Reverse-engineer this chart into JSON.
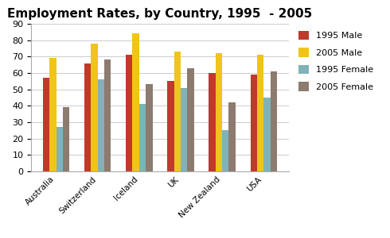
{
  "title": "Employment Rates, by Country, 1995  - 2005",
  "categories": [
    "Australia",
    "Switzerland",
    "Iceland",
    "UK",
    "New Zealand",
    "USA"
  ],
  "series": {
    "1995 Male": [
      57,
      66,
      71,
      55,
      60,
      59
    ],
    "2005 Male": [
      69,
      78,
      84,
      73,
      72,
      71
    ],
    "1995 Female": [
      27,
      56,
      41,
      51,
      25,
      45
    ],
    "2005 Female": [
      39,
      68,
      53,
      63,
      42,
      61
    ]
  },
  "colors": {
    "1995 Male": "#C1392B",
    "2005 Male": "#F0C419",
    "1995 Female": "#7FB3B8",
    "2005 Female": "#8C7B6E"
  },
  "ylim": [
    0,
    90
  ],
  "yticks": [
    0,
    10,
    20,
    30,
    40,
    50,
    60,
    70,
    80,
    90
  ],
  "legend_labels": [
    "1995 Male",
    "2005 Male",
    "1995 Female",
    "2005 Female"
  ],
  "bar_width": 0.16,
  "title_fontsize": 11
}
